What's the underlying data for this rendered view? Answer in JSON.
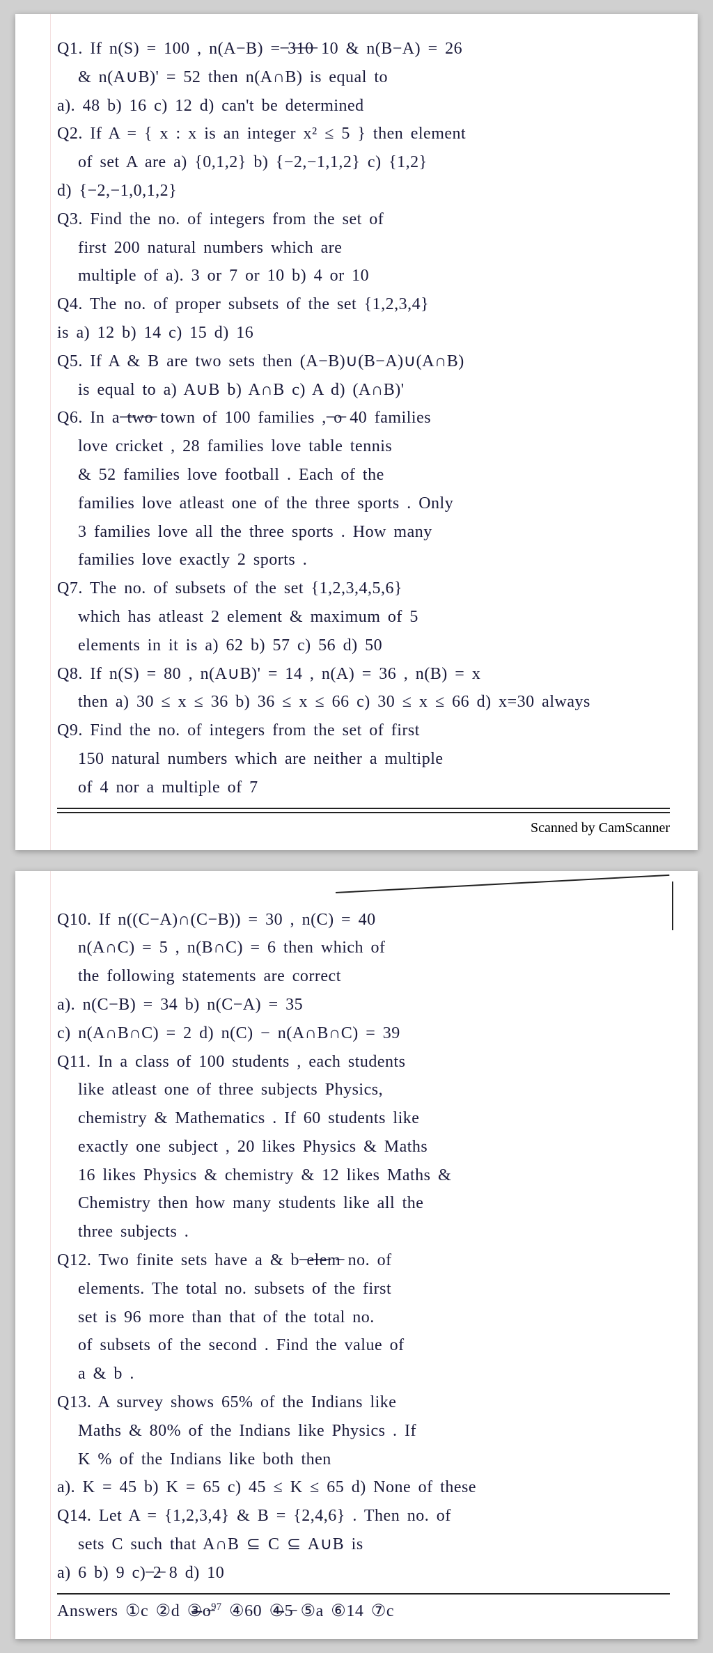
{
  "page1": {
    "q1": {
      "l1": "Q1. If n(S) = 100 , n(A−B) = ̶3̶1̶0̶ 10 & n(B−A) = 26",
      "l2": "& n(A∪B)' = 52   then   n(A∩B) is equal to",
      "l3": "a). 48     b) 16     c) 12     d) can't be determined"
    },
    "q2": {
      "l1": "Q2. If A = { x : x is an integer x² ≤ 5 } then element",
      "l2": "of set A  are   a) {0,1,2}   b) {−2,−1,1,2}  c) {1,2}",
      "l3": "d) {−2,−1,0,1,2}"
    },
    "q3": {
      "l1": "Q3. Find the no. of integers from the set of",
      "l2": "first 200 natural numbers which are",
      "l3": "multiple of  a). 3 or 7 or 10     b) 4 or 10"
    },
    "q4": {
      "l1": "Q4. The no. of proper subsets of the set {1,2,3,4}",
      "l2": "is   a) 12     b) 14     c) 15    d) 16"
    },
    "q5": {
      "l1": "Q5. If A & B are two sets then (A−B)∪(B−A)∪(A∩B)",
      "l2": "is equal to   a) A∪B    b) A∩B   c) A    d) (A∩B)'"
    },
    "q6": {
      "l1": "Q6.  In a ̶t̶w̶o̶ town of 100 families , ̶o̶ 40 families",
      "l2": "love cricket , 28 families love table tennis",
      "l3": "& 52 families love football . Each of the",
      "l4": "families love atleast one of the three sports . Only",
      "l5": "3 families love all the three sports . How many",
      "l6": "families love exactly 2 sports ."
    },
    "q7": {
      "l1": "Q7. The no. of subsets of the set {1,2,3,4,5,6}",
      "l2": "which has atleast 2 element & maximum of 5",
      "l3": "elements in it  is   a) 62    b) 57   c) 56   d) 50"
    },
    "q8": {
      "l1": "Q8. If n(S) = 80 , n(A∪B)' = 14 , n(A) = 36 , n(B) = x",
      "l2": "then  a) 30 ≤ x ≤ 36    b) 36 ≤ x ≤ 66    c) 30 ≤ x ≤ 66   d) x=30 always"
    },
    "q9": {
      "l1": "Q9. Find the no. of integers from the set of first",
      "l2": "150 natural numbers which are neither a multiple",
      "l3": "of 4 nor a multiple of 7"
    },
    "scanner": "Scanned by CamScanner"
  },
  "page2": {
    "q10": {
      "l1": "Q10. If n((C−A)∩(C−B)) = 30  , n(C) = 40",
      "l2": "n(A∩C) = 5   , n(B∩C) = 6  then  which of",
      "l3": "the following statements are correct",
      "l4": "a). n(C−B) = 34      b) n(C−A) = 35",
      "l5": "c) n(A∩B∩C) = 2     d) n(C) − n(A∩B∩C) = 39"
    },
    "q11": {
      "l1": "Q11. In a class of 100 students , each students",
      "l2": "like atleast one of three subjects Physics,",
      "l3": "chemistry & Mathematics . If 60 students like",
      "l4": "exactly one subject , 20 likes Physics & Maths",
      "l5": "16 likes Physics & chemistry & 12 likes Maths &",
      "l6": "Chemistry then how many students like all the",
      "l7": "three subjects ."
    },
    "q12": {
      "l1": "Q12. Two finite sets have a & b ̶e̶l̶e̶m̶ no. of",
      "l2": "elements. The total no. subsets of the first",
      "l3": "set  is 96 more than that of the total no.",
      "l4": "of subsets of the second . Find the value of",
      "l5": "a & b ."
    },
    "q13": {
      "l1": "Q13. A survey shows 65% of the Indians like",
      "l2": "Maths & 80% of the Indians like Physics . If",
      "l3": "K % of the Indians like both then",
      "l4": "a). K = 45    b) K = 65    c) 45 ≤ K ≤ 65   d) None of these"
    },
    "q14": {
      "l1": "Q14. Let A = {1,2,3,4} & B = {2,4,6} . Then no. of",
      "l2": "sets C such that A∩B ⊆ C ⊆ A∪B is",
      "l3": "a) 6    b) 9    c) ̶2̶ 8    d) 10"
    },
    "answers": {
      "label": "Answers",
      "a1": "①",
      "v1": "c",
      "a2": "②",
      "v2": "d",
      "a3": "③",
      "v3": "̶o̶",
      "num97": "97",
      "a4": "④",
      "v4": "60",
      "a5": "④",
      "v5": "̶5̶",
      "a6": "⑤",
      "v6": "a",
      "a7": "⑥",
      "v7": "14",
      "a8": "⑦",
      "v8": "c"
    }
  }
}
